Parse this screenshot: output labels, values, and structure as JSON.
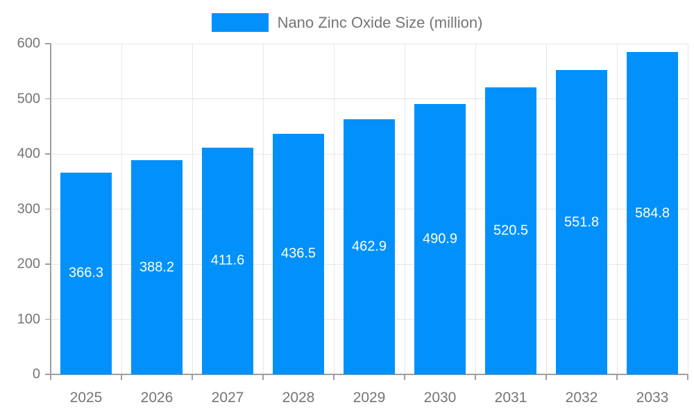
{
  "chart_data": {
    "type": "bar",
    "title": "Nano Zinc Oxide Size (million)",
    "categories": [
      "2025",
      "2026",
      "2027",
      "2028",
      "2029",
      "2030",
      "2031",
      "2032",
      "2033"
    ],
    "values": [
      366.3,
      388.2,
      411.6,
      436.5,
      462.9,
      490.9,
      520.5,
      551.8,
      584.8
    ],
    "xlabel": "",
    "ylabel": "",
    "ylim": [
      0,
      600
    ],
    "yticks": [
      0,
      100,
      200,
      300,
      400,
      500,
      600
    ],
    "grid": true,
    "legend_position": "top",
    "bar_color": "#0291fb",
    "value_label_color": "#ffffff"
  },
  "style": {
    "axis_color": "#9e9e9e",
    "grid_color": "#e6e6e6",
    "text_color": "#757575",
    "background": "#ffffff"
  }
}
